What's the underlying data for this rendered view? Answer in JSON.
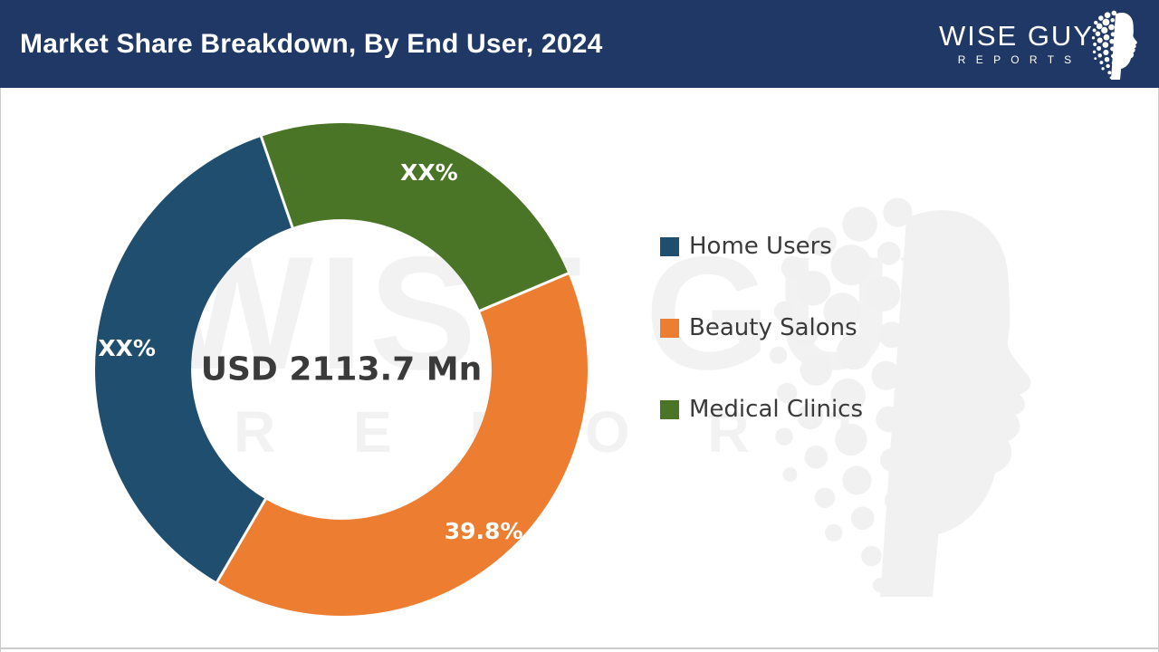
{
  "header": {
    "title": "Market Share Breakdown, By End User, 2024",
    "logo": {
      "brand": "WISE GUY",
      "tagline": "R E P O R T S"
    }
  },
  "watermark": {
    "brand": "WISE GUY",
    "tagline": "R E P O R T S"
  },
  "chart_data": {
    "type": "pie",
    "subtype": "donut",
    "title": "Market Share Breakdown, By End User, 2024",
    "center_label": "USD 2113.7 Mn",
    "start_angle_from_top_deg": -19,
    "direction": "clockwise",
    "inner_radius_ratio": 0.61,
    "segments": [
      {
        "name": "Medical Clinics",
        "label": "XX%",
        "value_pct": 23.9,
        "color": "#4A7527"
      },
      {
        "name": "Beauty Salons",
        "label": "39.8%",
        "value_pct": 39.8,
        "color": "#ED7D31"
      },
      {
        "name": "Home Users",
        "label": "XX%",
        "value_pct": 36.3,
        "color": "#1F4E6E"
      }
    ],
    "legend": {
      "position": "right",
      "items": [
        {
          "label": "Home Users",
          "color": "#1F4E6E"
        },
        {
          "label": "Beauty Salons",
          "color": "#ED7D31"
        },
        {
          "label": "Medical Clinics",
          "color": "#4A7527"
        }
      ]
    }
  },
  "colors": {
    "header_bg": "#1F3865",
    "page_bg": "#FFFFFF",
    "text_dark": "#3A3A3A",
    "slice_label": "#FFFFFF",
    "watermark": "#F2F2F2",
    "border": "#CCCCCC"
  }
}
